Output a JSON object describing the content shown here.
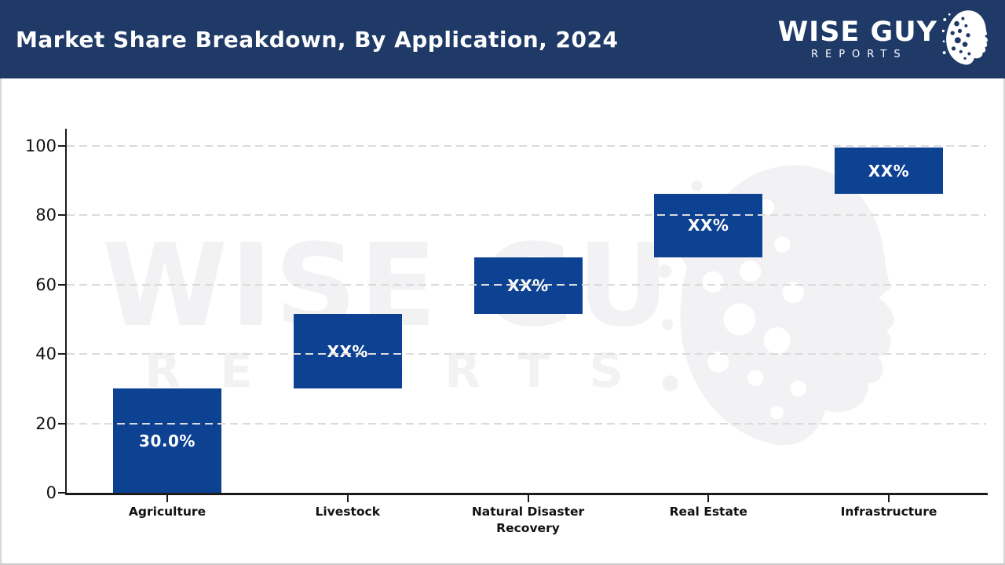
{
  "header": {
    "title": "Market Share Breakdown, By Application, 2024",
    "logo": {
      "line1": "WISE GUY",
      "line2": "REPORTS"
    }
  },
  "watermark": {
    "line1": "WISE GUY",
    "line2": "REPORTS"
  },
  "chart_data": {
    "type": "bar",
    "subtype": "floating-waterfall",
    "title": "Market Share Breakdown, By Application, 2024",
    "categories": [
      "Agriculture",
      "Livestock",
      "Natural Disaster Recovery",
      "Real Estate",
      "Infrastructure"
    ],
    "segments": [
      {
        "category": "Agriculture",
        "start": 0,
        "end": 30.0,
        "label": "30.0%"
      },
      {
        "category": "Livestock",
        "start": 30.0,
        "end": 51.5,
        "label": "XX%"
      },
      {
        "category": "Natural Disaster Recovery",
        "start": 51.5,
        "end": 67.8,
        "label": "XX%"
      },
      {
        "category": "Real Estate",
        "start": 67.8,
        "end": 86.1,
        "label": "XX%"
      },
      {
        "category": "Infrastructure",
        "start": 86.1,
        "end": 99.4,
        "label": "XX%"
      }
    ],
    "xlabel": "",
    "ylabel": "",
    "ylim": [
      0,
      100
    ],
    "yticks": [
      0,
      20,
      40,
      60,
      80,
      100
    ],
    "grid": "horizontal-dashed",
    "legend": "none",
    "bar_color": "#0d4192",
    "bar_label_color": "#ffffff"
  },
  "colors": {
    "header_bg": "#203a68",
    "bar": "#0d4192",
    "watermark": "#f2f2f4",
    "gridline": "#dbdbdb",
    "axis": "#1b1b1b"
  }
}
